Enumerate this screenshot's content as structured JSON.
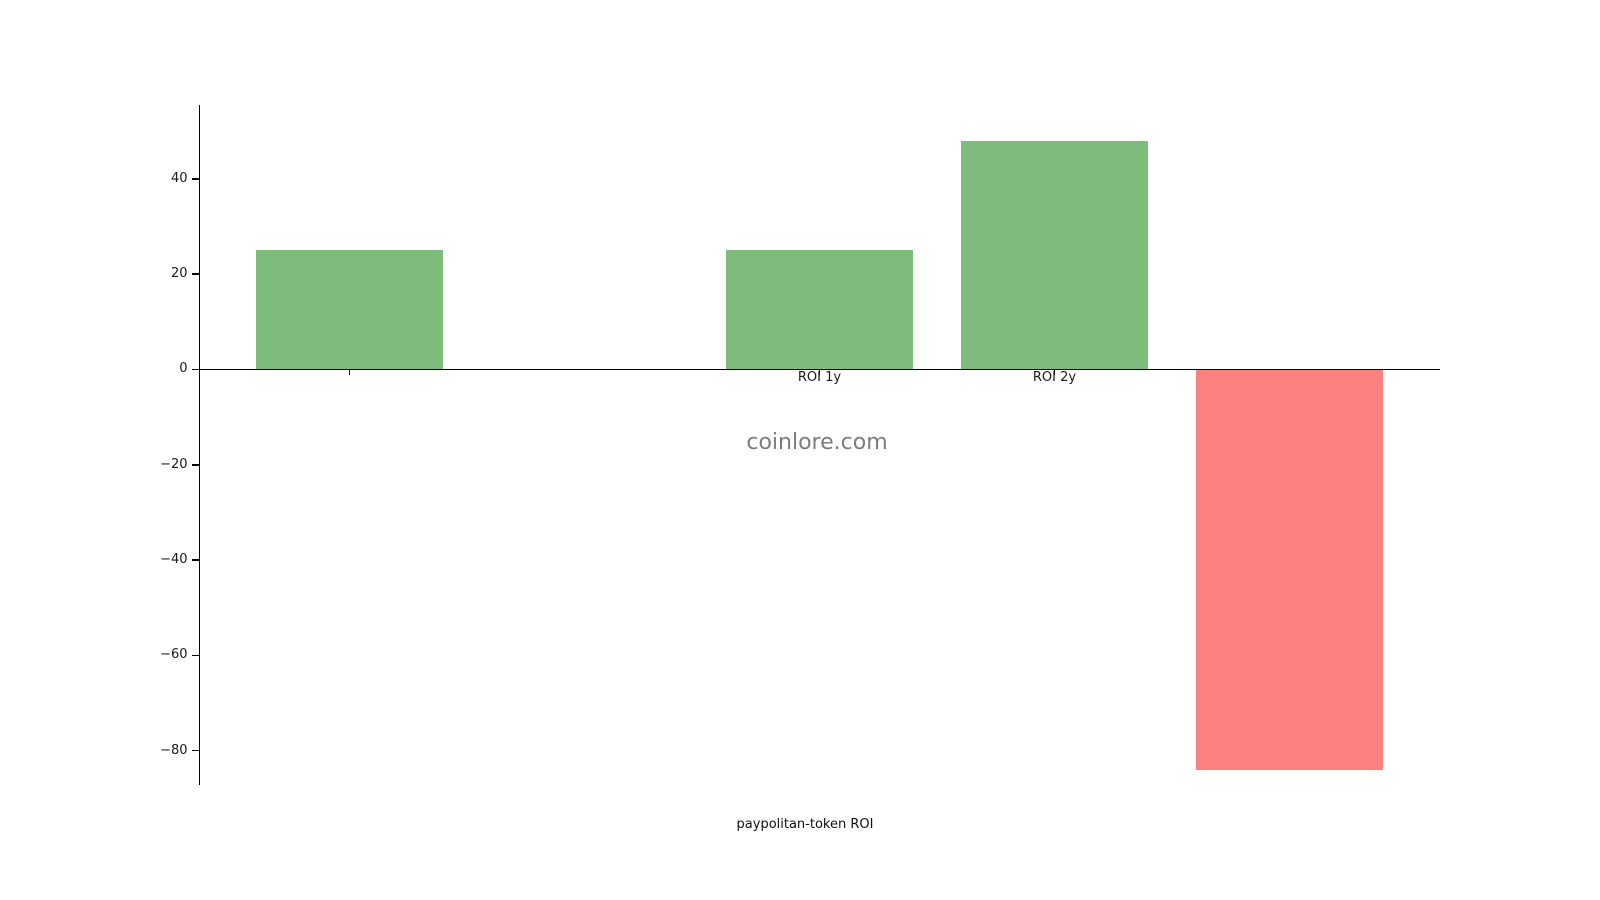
{
  "page": {
    "background": "#ffffff"
  },
  "watermark": {
    "text": "coinlore.com",
    "color": "#7d7d7d"
  },
  "chart_data": {
    "type": "bar",
    "title": "paypolitan-token ROI",
    "xlabel": "",
    "ylabel": "",
    "ylim": [
      -87.2,
      55.5
    ],
    "grid": false,
    "legend": "none",
    "colors": {
      "positive": "#7EBC7E",
      "negative": "#FB8080",
      "axis": "#000000"
    },
    "y_ticks": [
      {
        "value": 40,
        "label": "40"
      },
      {
        "value": 20,
        "label": "20"
      },
      {
        "value": 0,
        "label": "0"
      },
      {
        "value": -20,
        "label": "−20"
      },
      {
        "value": -40,
        "label": "−40"
      },
      {
        "value": -60,
        "label": "−60"
      },
      {
        "value": -80,
        "label": "−80"
      }
    ],
    "x_ticks": [
      {
        "slot": 0,
        "label": ""
      },
      {
        "slot": 2,
        "label": "ROI 1y"
      },
      {
        "slot": 3,
        "label": "ROI 2y"
      }
    ],
    "bars": [
      {
        "slot": 0,
        "label": "",
        "value": 25,
        "color": "#7EBC7E"
      },
      {
        "slot": 2,
        "label": "ROI 1y",
        "value": 25,
        "color": "#7EBC7E"
      },
      {
        "slot": 3,
        "label": "ROI 2y",
        "value": 48,
        "color": "#7EBC7E"
      },
      {
        "slot": 4,
        "label": "",
        "value": -84,
        "color": "#FB8080"
      }
    ]
  }
}
